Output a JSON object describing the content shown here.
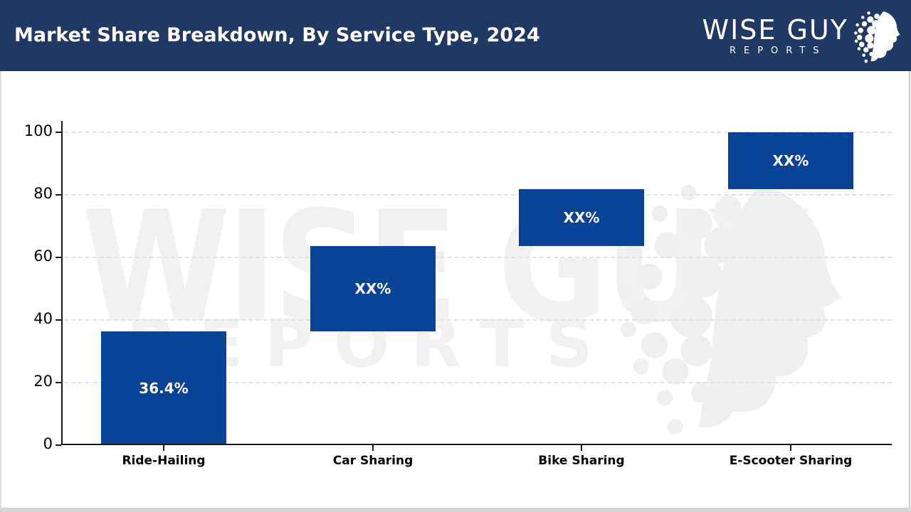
{
  "header": {
    "title": "Market Share Breakdown, By Service Type, 2024",
    "logo": {
      "wordmark": "WISE GUY",
      "subtext": "REPORTS"
    }
  },
  "watermark": {
    "wordmark": "WISE GUY",
    "subtext": "REPORTS"
  },
  "chart_data": {
    "type": "bar",
    "subtype": "waterfall-floating-bars",
    "title": "Market Share Breakdown, By Service Type, 2024",
    "categories": [
      "Ride-Hailing",
      "Car Sharing",
      "Bike Sharing",
      "E-Scooter Sharing"
    ],
    "segments": [
      {
        "category": "Ride-Hailing",
        "start": 0,
        "end": 36.4,
        "label": "36.4%"
      },
      {
        "category": "Car Sharing",
        "start": 36.4,
        "end": 63.6,
        "label": "XX%"
      },
      {
        "category": "Bike Sharing",
        "start": 63.6,
        "end": 81.8,
        "label": "XX%"
      },
      {
        "category": "E-Scooter Sharing",
        "start": 81.8,
        "end": 100,
        "label": "XX%"
      }
    ],
    "yticks": [
      0,
      20,
      40,
      60,
      80,
      100
    ],
    "ylim": [
      0,
      103.5
    ],
    "xlabel": "",
    "ylabel": "",
    "grid": "horizontal-dashed",
    "legend": "none"
  },
  "colors": {
    "header_bg": "#203864",
    "bar": "#0a4296",
    "bar_label": "#ffffff",
    "axis": "#1a1a1a",
    "grid": "#e3e3e3",
    "watermark": "#f1f1f1",
    "title_text": "#ffffff"
  }
}
